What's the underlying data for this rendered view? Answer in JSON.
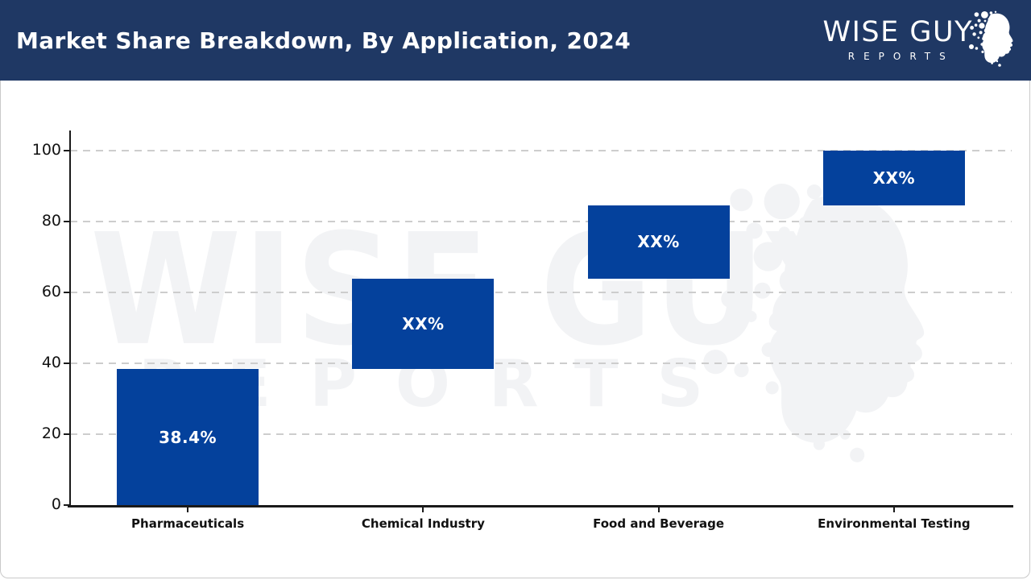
{
  "header": {
    "title": "Market Share Breakdown, By Application, 2024",
    "logo": {
      "line1": "WISE GUY",
      "line2": "REPORTS"
    }
  },
  "watermark": {
    "line1": "WISE GUY",
    "line2": "REPORTS"
  },
  "chart_data": {
    "type": "bar",
    "variant": "waterfall",
    "title": "Market Share Breakdown, By Application, 2024",
    "categories": [
      "Pharmaceuticals",
      "Chemical Industry",
      "Food and Beverage",
      "Environmental Testing"
    ],
    "segments": [
      {
        "category": "Pharmaceuticals",
        "start": 0,
        "end": 38.4,
        "label": "38.4%",
        "estimated_value": 38.4
      },
      {
        "category": "Chemical Industry",
        "start": 38.4,
        "end": 64.0,
        "label": "XX%",
        "estimated_value": 25.6
      },
      {
        "category": "Food and Beverage",
        "start": 64.0,
        "end": 84.5,
        "label": "XX%",
        "estimated_value": 20.5
      },
      {
        "category": "Environmental Testing",
        "start": 84.5,
        "end": 100.0,
        "label": "XX%",
        "estimated_value": 15.5
      }
    ],
    "y_ticks": [
      0,
      20,
      40,
      60,
      80,
      100
    ],
    "ylim": [
      0,
      105
    ],
    "xlabel": "",
    "ylabel": "",
    "legend": "none",
    "grid": "horizontal-dashed",
    "colors": {
      "bar": "#04419c",
      "header_bg": "#1f3864",
      "grid_line": "#cdcdcd",
      "axis": "#1a1a1a",
      "bar_label": "#ffffff",
      "watermark": "#f2f3f5"
    }
  }
}
